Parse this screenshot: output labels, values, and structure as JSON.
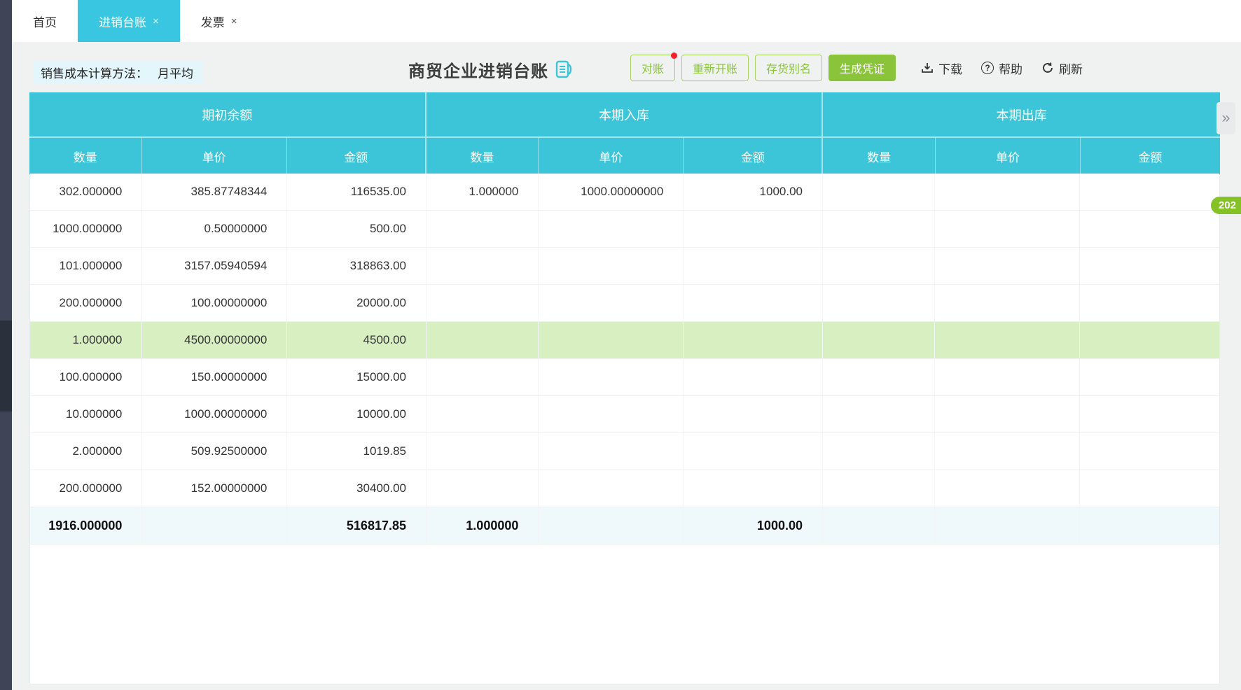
{
  "ui": {
    "close_glyph": "×",
    "expander_glyph": "»"
  },
  "tabs": [
    {
      "label": "首页",
      "active": false,
      "closable": false
    },
    {
      "label": "进销台账",
      "active": true,
      "closable": true
    },
    {
      "label": "发票",
      "active": false,
      "closable": true
    }
  ],
  "header": {
    "method_label": "销售成本计算方法：",
    "method_value": "月平均",
    "title": "商贸企业进销台账"
  },
  "toolbar": {
    "buttons": [
      {
        "label": "对账",
        "style": "outline",
        "notification_dot": true
      },
      {
        "label": "重新开账",
        "style": "outline",
        "notification_dot": false
      },
      {
        "label": "存货别名",
        "style": "outline",
        "notification_dot": false
      },
      {
        "label": "生成凭证",
        "style": "solid",
        "notification_dot": false
      }
    ],
    "actions": [
      {
        "label": "下载",
        "icon": "download-icon"
      },
      {
        "label": "帮助",
        "icon": "help-icon"
      },
      {
        "label": "刷新",
        "icon": "refresh-icon"
      }
    ]
  },
  "colors": {
    "accent_cyan": "#3cc5d8",
    "accent_green": "#8ac43b",
    "highlight_row": "#d8efc2",
    "total_row": "#eff8fb",
    "notification_red": "#f5222d"
  },
  "table": {
    "groups": [
      "期初余额",
      "本期入库",
      "本期出库"
    ],
    "columns": [
      "数量",
      "单价",
      "金额",
      "数量",
      "单价",
      "金额",
      "数量",
      "单价",
      "金额"
    ],
    "highlight_row_index": 4,
    "rows": [
      [
        "302.000000",
        "385.87748344",
        "116535.00",
        "1.000000",
        "1000.00000000",
        "1000.00",
        "",
        "",
        ""
      ],
      [
        "1000.000000",
        "0.50000000",
        "500.00",
        "",
        "",
        "",
        "",
        "",
        ""
      ],
      [
        "101.000000",
        "3157.05940594",
        "318863.00",
        "",
        "",
        "",
        "",
        "",
        ""
      ],
      [
        "200.000000",
        "100.00000000",
        "20000.00",
        "",
        "",
        "",
        "",
        "",
        ""
      ],
      [
        "1.000000",
        "4500.00000000",
        "4500.00",
        "",
        "",
        "",
        "",
        "",
        ""
      ],
      [
        "100.000000",
        "150.00000000",
        "15000.00",
        "",
        "",
        "",
        "",
        "",
        ""
      ],
      [
        "10.000000",
        "1000.00000000",
        "10000.00",
        "",
        "",
        "",
        "",
        "",
        ""
      ],
      [
        "2.000000",
        "509.92500000",
        "1019.85",
        "",
        "",
        "",
        "",
        "",
        ""
      ],
      [
        "200.000000",
        "152.00000000",
        "30400.00",
        "",
        "",
        "",
        "",
        "",
        ""
      ]
    ],
    "total_row": [
      "1916.000000",
      "",
      "516817.85",
      "1.000000",
      "",
      "1000.00",
      "",
      "",
      ""
    ]
  },
  "side_badge": "202"
}
